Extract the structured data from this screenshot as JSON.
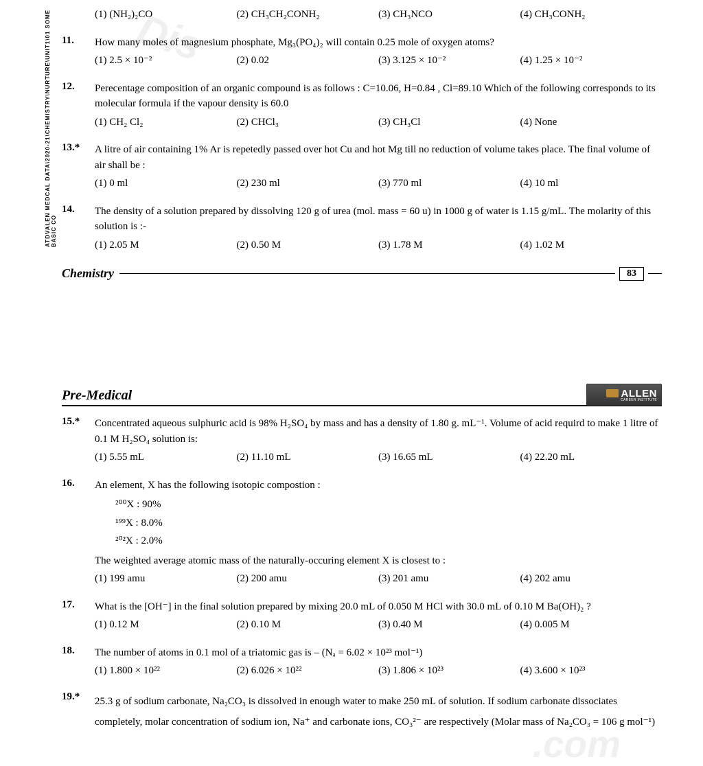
{
  "sidebar_text": "ATDVALEN MEDCAL DATA\\2020-21\\CHEMISTRY\\NURTURE\\UNIT1\\01 SOME BASIC CO",
  "top_questions": [
    {
      "num": "",
      "text": "",
      "options": [
        "(1) (NH₂)₂CO",
        "(2) CH₃CH₂CONH₂",
        "(3) CH₃NCO",
        "(4) CH₃CONH₂"
      ]
    },
    {
      "num": "11.",
      "text": "How many moles of magnesium phosphate, Mg₃(PO₄)₂ will contain 0.25 mole of oxygen atoms?",
      "options": [
        "(1) 2.5 × 10⁻²",
        "(2) 0.02",
        "(3) 3.125 × 10⁻²",
        "(4) 1.25 × 10⁻²"
      ]
    },
    {
      "num": "12.",
      "text": "Perecentage composition of an organic compound  is as follows : C=10.06, H=0.84 , Cl=89.10 Which of the following corresponds to its molecular formula if the vapour density is 60.0",
      "options": [
        "(1) CH₂ Cl₂",
        "(2) CHCl₃",
        "(3) CH₃Cl",
        "(4) None"
      ]
    },
    {
      "num": "13.*",
      "text": "A litre of air containing 1% Ar is repetedly passed over hot Cu and hot Mg till no reduction of volume takes place. The final volume of air shall be :",
      "options": [
        "(1) 0 ml",
        "(2) 230 ml",
        "(3) 770 ml",
        "(4) 10 ml"
      ]
    },
    {
      "num": "14.",
      "text": "The density of a solution prepared by dissolving 120 g of urea (mol. mass = 60 u) in 1000 g of water is 1.15 g/mL. The molarity of this solution is :-",
      "options": [
        "(1) 2.05 M",
        "(2) 0.50 M",
        "(3) 1.78 M",
        "(4) 1.02 M"
      ]
    }
  ],
  "chemistry_label": "Chemistry",
  "page_num_top": "83",
  "pre_medical_label": "Pre-Medical",
  "allen_brand": "ALLEN",
  "allen_sub": "CAREER INSTITUTE",
  "bottom_questions": [
    {
      "num": "15.*",
      "text": "Concentrated aqueous sulphuric acid is 98% H₂SO₄ by mass and has a density of 1.80 g. mL⁻¹. Volume of acid requird to make 1 litre of 0.1 M H₂SO₄ solution is:",
      "options": [
        "(1) 5.55 mL",
        "(2) 11.10 mL",
        "(3) 16.65 mL",
        "(4) 22.20 mL"
      ]
    },
    {
      "num": "16.",
      "text": "An element, X has the following isotopic compostion :",
      "isotopes": [
        "²⁰⁰X : 90%",
        "¹⁹⁹X : 8.0%",
        "²⁰²X : 2.0%"
      ],
      "text2": "The weighted average atomic mass of the naturally-occuring element X is closest to :",
      "options": [
        "(1) 199 amu",
        "(2) 200 amu",
        "(3) 201 amu",
        "(4) 202 amu"
      ]
    },
    {
      "num": "17.",
      "text": "What is the [OH⁻] in the final solution prepared by mixing 20.0 mL of 0.050 M HCl with 30.0 mL of 0.10 M Ba(OH)₂ ?",
      "options": [
        "(1) 0.12 M",
        "(2) 0.10 M",
        "(3) 0.40 M",
        "(4) 0.005 M"
      ]
    },
    {
      "num": "18.",
      "text": "The number of atoms in 0.1 mol of a triatomic gas is – (Nₐ = 6.02 × 10²³ mol⁻¹)",
      "options": [
        "(1) 1.800 × 10²²",
        "(2) 6.026 × 10²²",
        "(3) 1.806 × 10²³",
        "(4) 3.600 × 10²³"
      ]
    },
    {
      "num": "19.*",
      "text": "25.3 g of sodium carbonate, Na₂CO₃ is dissolved in enough water to make 250 mL of solution. If sodium carbonate dissociates completely, molar concentration of sodium ion, Na⁺ and carbonate ions, CO₃²⁻ are respectively (Molar mass of Na₂CO₃ = 106 g mol⁻¹)",
      "options": []
    }
  ],
  "watermark1": "Dis",
  "watermark2": ".com"
}
